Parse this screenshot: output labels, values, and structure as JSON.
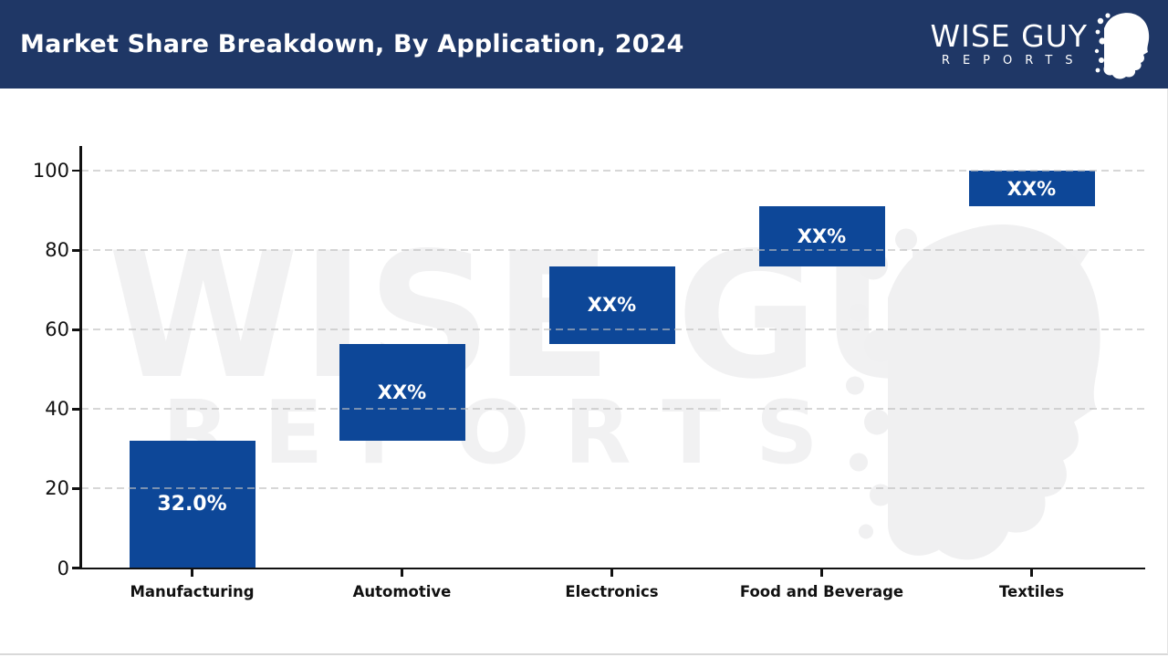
{
  "header": {
    "title": "Market Share Breakdown, By Application, 2024",
    "logo_line1": "WISE GUY",
    "logo_line2": "REPORTS"
  },
  "watermark": {
    "line1": "WISE GUY",
    "line2": "REPORTS"
  },
  "colors": {
    "header_bg": "#1f3766",
    "bar": "#0d4798",
    "bar_label": "#ffffff",
    "axis": "#111111",
    "gridline": "#d9d9d9",
    "watermark": "#f1f1f2"
  },
  "chart_data": {
    "type": "bar",
    "subtype": "waterfall",
    "title": "Market Share Breakdown, By Application, 2024",
    "xlabel": "",
    "ylabel": "",
    "categories": [
      "Manufacturing",
      "Automotive",
      "Electronics",
      "Food and Beverage",
      "Textiles"
    ],
    "segments": [
      {
        "category": "Manufacturing",
        "label": "32.0%",
        "start": 0,
        "end": 32
      },
      {
        "category": "Automotive",
        "label": "XX%",
        "start": 32,
        "end": 56.5
      },
      {
        "category": "Electronics",
        "label": "XX%",
        "start": 56.5,
        "end": 76
      },
      {
        "category": "Food and Beverage",
        "label": "XX%",
        "start": 76,
        "end": 91
      },
      {
        "category": "Textiles",
        "label": "XX%",
        "start": 91,
        "end": 100
      }
    ],
    "yticks": [
      0,
      20,
      40,
      60,
      80,
      100
    ],
    "ylim": [
      0,
      105
    ],
    "grid": "horizontal dashed, drawn over bars",
    "legend": "none",
    "bar_value_labels_inside": true
  }
}
